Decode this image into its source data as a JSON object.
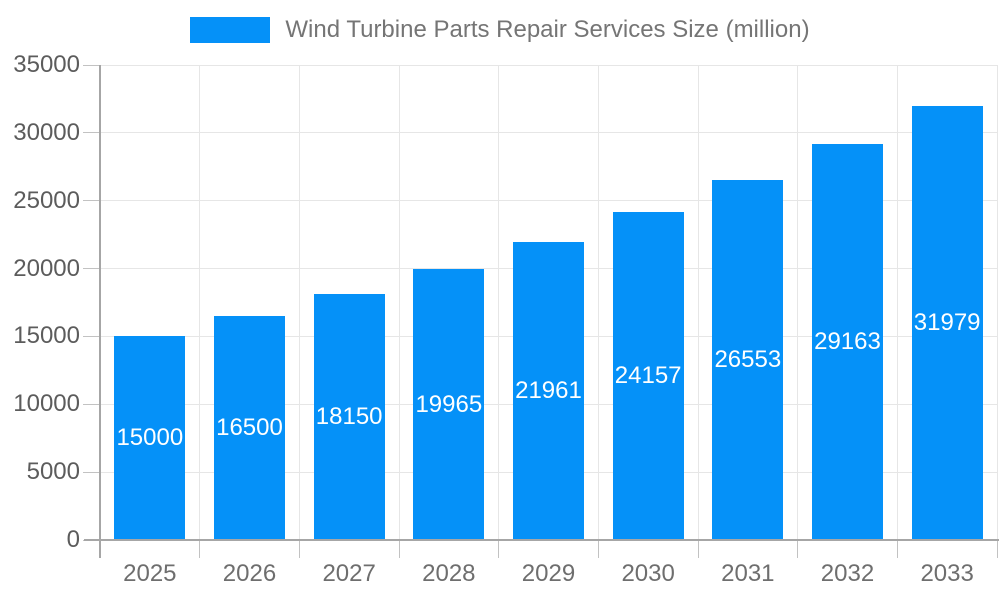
{
  "chart_data": {
    "type": "bar",
    "title": "Wind Turbine Parts Repair Services Size (million)",
    "categories": [
      "2025",
      "2026",
      "2027",
      "2028",
      "2029",
      "2030",
      "2031",
      "2032",
      "2033"
    ],
    "values": [
      15000,
      16500,
      18150,
      19965,
      21961,
      24157,
      26553,
      29163,
      31979
    ],
    "data_labels": [
      "15000",
      "16500",
      "18150",
      "19965",
      "21961",
      "24157",
      "26553",
      "29163",
      "31979"
    ],
    "xlabel": "",
    "ylabel": "",
    "ylim": [
      0,
      35000
    ],
    "yticks": [
      0,
      5000,
      10000,
      15000,
      20000,
      25000,
      30000,
      35000
    ],
    "ytick_labels": [
      "0",
      "5000",
      "10000",
      "15000",
      "20000",
      "25000",
      "30000",
      "35000"
    ],
    "grid": true,
    "legend_position": "top",
    "colors": {
      "bar": "#0591f8",
      "grid": "#e6e6e6",
      "tick": "#c2c2c2",
      "axis": "#a6a6a6",
      "y_tick_label": "#5c5c5c",
      "x_tick_label": "#6e6e6e",
      "legend_text": "#757575",
      "bar_label": "#ffffff",
      "background": "#ffffff"
    }
  }
}
